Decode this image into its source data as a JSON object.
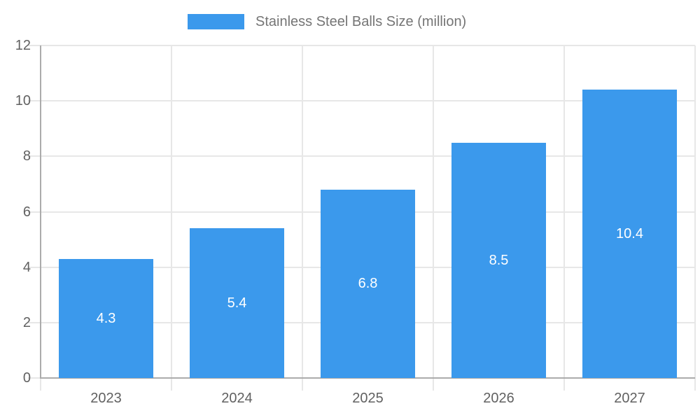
{
  "chart_data": {
    "type": "bar",
    "title": "",
    "xlabel": "",
    "ylabel": "",
    "categories": [
      "2023",
      "2024",
      "2025",
      "2026",
      "2027"
    ],
    "series": [
      {
        "name": "Stainless Steel Balls Size (million)",
        "values": [
          4.3,
          5.4,
          6.8,
          8.5,
          10.4
        ],
        "color": "#3B99EC"
      }
    ],
    "value_labels": [
      "4.3",
      "5.4",
      "6.8",
      "8.5",
      "10.4"
    ],
    "ylim": [
      0,
      12
    ],
    "yticks": [
      "0",
      "2",
      "4",
      "6",
      "8",
      "10",
      "12"
    ],
    "grid": true,
    "legend_position": "top-center",
    "colors": {
      "background": "#ffffff",
      "grid": "#e7e7e7",
      "axis": "#ababab",
      "tick_label": "#616161",
      "legend_text": "#757575",
      "value_label": "#ffffff"
    }
  },
  "legend": {
    "label": "Stainless Steel Balls Size (million)"
  }
}
